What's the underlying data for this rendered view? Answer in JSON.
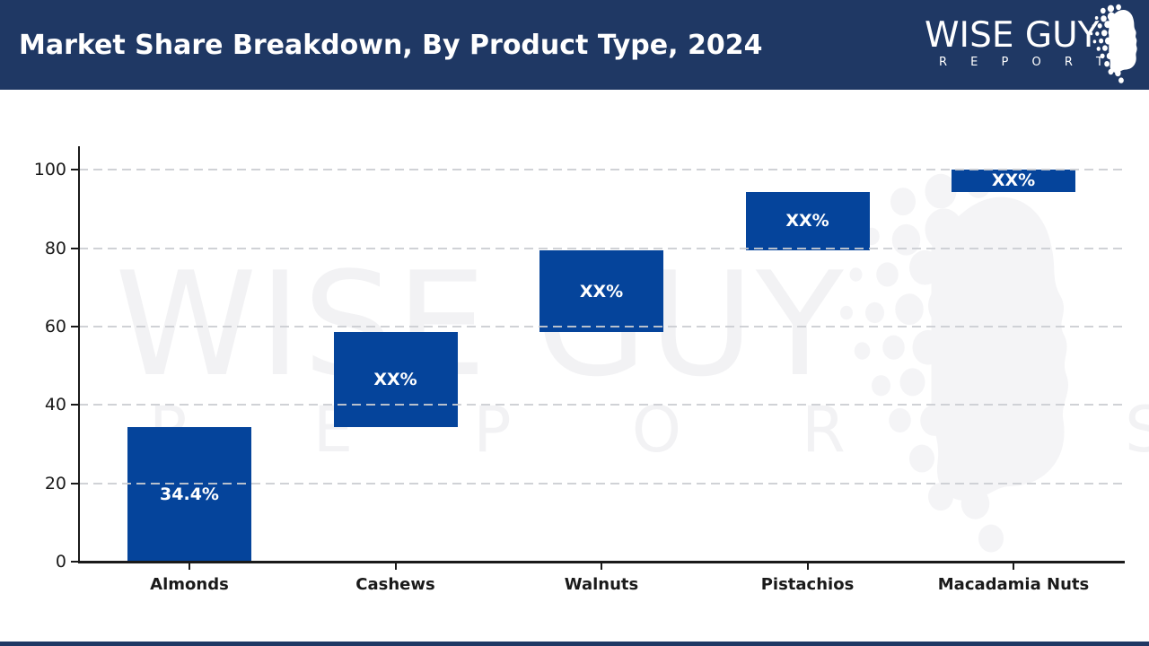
{
  "header": {
    "title": "Market Share Breakdown, By Product Type, 2024",
    "bg_color": "#1f3864",
    "logo": {
      "wordmark": "WISE GUY",
      "subtext": "R E P O R T S"
    }
  },
  "watermark": {
    "wordmark": "WISE GUY",
    "subtext": "R E P O R T S"
  },
  "chart_data": {
    "type": "bar",
    "subtype": "waterfall",
    "title": "Market Share Breakdown, By Product Type, 2024",
    "xlabel": "",
    "ylabel": "",
    "ylim": [
      0,
      106
    ],
    "yticks": [
      0,
      20,
      40,
      60,
      80,
      100
    ],
    "grid": true,
    "gridline_style": "dashed",
    "gridline_color": "#d9d9d9",
    "bar_color": "#05449b",
    "label_color": "#ffffff",
    "categories": [
      "Almonds",
      "Cashews",
      "Walnuts",
      "Pistachios",
      "Macadamia Nuts"
    ],
    "segments": [
      {
        "category": "Almonds",
        "start": 0,
        "end": 34.4,
        "value": 34.4,
        "label": "34.4%"
      },
      {
        "category": "Cashews",
        "start": 34.4,
        "end": 58.6,
        "value": 24.2,
        "label": "XX%"
      },
      {
        "category": "Walnuts",
        "start": 58.6,
        "end": 79.4,
        "value": 20.8,
        "label": "XX%"
      },
      {
        "category": "Pistachios",
        "start": 79.4,
        "end": 94.4,
        "value": 15.0,
        "label": "XX%"
      },
      {
        "category": "Macadamia Nuts",
        "start": 94.4,
        "end": 100,
        "value": 5.6,
        "label": "XX%"
      }
    ]
  }
}
